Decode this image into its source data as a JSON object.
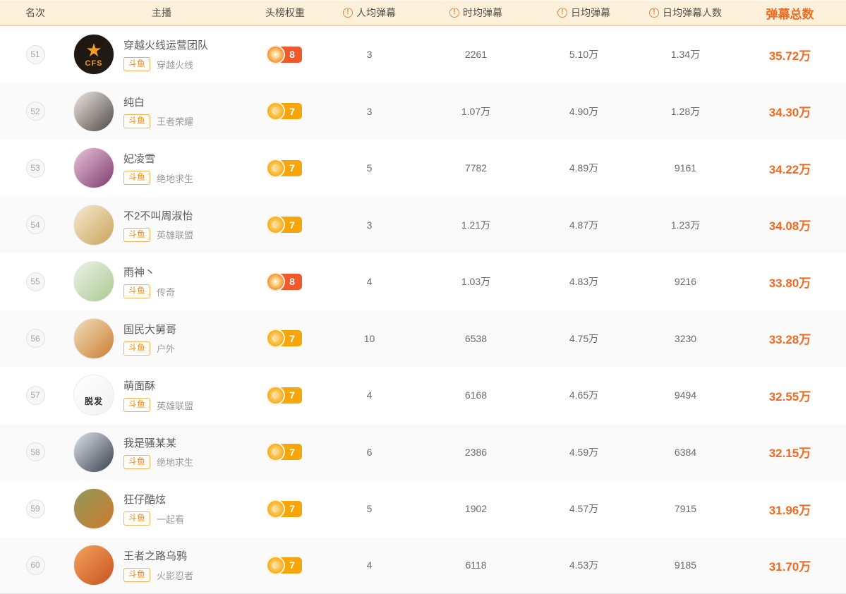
{
  "header": {
    "info_glyph": "!",
    "columns": [
      {
        "label": "名次",
        "info": false
      },
      {
        "label": "主播",
        "info": false
      },
      {
        "label": "头榜权重",
        "info": false
      },
      {
        "label": "人均弹幕",
        "info": true
      },
      {
        "label": "时均弹幕",
        "info": true
      },
      {
        "label": "日均弹幕",
        "info": true
      },
      {
        "label": "日均弹幕人数",
        "info": true
      },
      {
        "label": "弹幕总数",
        "info": false
      }
    ]
  },
  "colors": {
    "header_bg": "#fdf1db",
    "accent_total": "#f5691f",
    "badge_sun": "#f1582c",
    "badge_moon": "#f6a60a",
    "platform_badge": "#f08c1e",
    "alt_row_bg": "#fafafa"
  },
  "icons": {
    "sun": "☀",
    "moon": "☾"
  },
  "table": {
    "rows": [
      {
        "rank": "51",
        "name": "穿越火线运营团队",
        "platform": "斗鱼",
        "game": "穿越火线",
        "weight": "8",
        "weight_tier": "sun",
        "per_user": "3",
        "hourly": "2261",
        "daily": "5.10万",
        "daily_users": "1.34万",
        "total": "35.72万",
        "avatar_colors": [
          "#1b1510",
          "#241c15"
        ],
        "avatar_star": "★",
        "avatar_caption": "CFS",
        "caption_style": ""
      },
      {
        "rank": "52",
        "name": "纯白",
        "platform": "斗鱼",
        "game": "王者荣耀",
        "weight": "7",
        "weight_tier": "moon",
        "per_user": "3",
        "hourly": "1.07万",
        "daily": "4.90万",
        "daily_users": "1.28万",
        "total": "34.30万",
        "avatar_colors": [
          "#ece7e2",
          "#514a47"
        ],
        "avatar_star": "",
        "avatar_caption": "",
        "caption_style": ""
      },
      {
        "rank": "53",
        "name": "妃凌雪",
        "platform": "斗鱼",
        "game": "绝地求生",
        "weight": "7",
        "weight_tier": "moon",
        "per_user": "5",
        "hourly": "7782",
        "daily": "4.89万",
        "daily_users": "9161",
        "total": "34.22万",
        "avatar_colors": [
          "#e9c3d9",
          "#7e3b6e"
        ],
        "avatar_star": "",
        "avatar_caption": "",
        "caption_style": ""
      },
      {
        "rank": "54",
        "name": "不2不叫周淑怡",
        "platform": "斗鱼",
        "game": "英雄联盟",
        "weight": "7",
        "weight_tier": "moon",
        "per_user": "3",
        "hourly": "1.21万",
        "daily": "4.87万",
        "daily_users": "1.23万",
        "total": "34.08万",
        "avatar_colors": [
          "#f6ead0",
          "#c9a35c"
        ],
        "avatar_star": "",
        "avatar_caption": "",
        "caption_style": ""
      },
      {
        "rank": "55",
        "name": "雨神丶",
        "platform": "斗鱼",
        "game": "传奇",
        "weight": "8",
        "weight_tier": "sun",
        "per_user": "4",
        "hourly": "1.03万",
        "daily": "4.83万",
        "daily_users": "9216",
        "total": "33.80万",
        "avatar_colors": [
          "#eef2ea",
          "#a9c98f"
        ],
        "avatar_star": "",
        "avatar_caption": "",
        "caption_style": ""
      },
      {
        "rank": "56",
        "name": "国民大舅哥",
        "platform": "斗鱼",
        "game": "户外",
        "weight": "7",
        "weight_tier": "moon",
        "per_user": "10",
        "hourly": "6538",
        "daily": "4.75万",
        "daily_users": "3230",
        "total": "33.28万",
        "avatar_colors": [
          "#f3ddba",
          "#c97f35"
        ],
        "avatar_star": "",
        "avatar_caption": "",
        "caption_style": ""
      },
      {
        "rank": "57",
        "name": "萌面酥",
        "platform": "斗鱼",
        "game": "英雄联盟",
        "weight": "7",
        "weight_tier": "moon",
        "per_user": "4",
        "hourly": "6168",
        "daily": "4.65万",
        "daily_users": "9494",
        "total": "32.55万",
        "avatar_colors": [
          "#ffffff",
          "#f1f1f1"
        ],
        "avatar_star": "",
        "avatar_caption": "脱发",
        "caption_style": "light-caption"
      },
      {
        "rank": "58",
        "name": "我是骚某某",
        "platform": "斗鱼",
        "game": "绝地求生",
        "weight": "7",
        "weight_tier": "moon",
        "per_user": "6",
        "hourly": "2386",
        "daily": "4.59万",
        "daily_users": "6384",
        "total": "32.15万",
        "avatar_colors": [
          "#dfe3e8",
          "#39414f"
        ],
        "avatar_star": "",
        "avatar_caption": "",
        "caption_style": ""
      },
      {
        "rank": "59",
        "name": "狂仔酷炫",
        "platform": "斗鱼",
        "game": "一起看",
        "weight": "7",
        "weight_tier": "moon",
        "per_user": "5",
        "hourly": "1902",
        "daily": "4.57万",
        "daily_users": "7915",
        "total": "31.96万",
        "avatar_colors": [
          "#8f9a5a",
          "#d07a2e"
        ],
        "avatar_star": "",
        "avatar_caption": "",
        "caption_style": ""
      },
      {
        "rank": "60",
        "name": "王者之路乌鸦",
        "platform": "斗鱼",
        "game": "火影忍者",
        "weight": "7",
        "weight_tier": "moon",
        "per_user": "4",
        "hourly": "6118",
        "daily": "4.53万",
        "daily_users": "9185",
        "total": "31.70万",
        "avatar_colors": [
          "#f2a35c",
          "#c8531f"
        ],
        "avatar_star": "",
        "avatar_caption": "",
        "caption_style": ""
      }
    ]
  }
}
